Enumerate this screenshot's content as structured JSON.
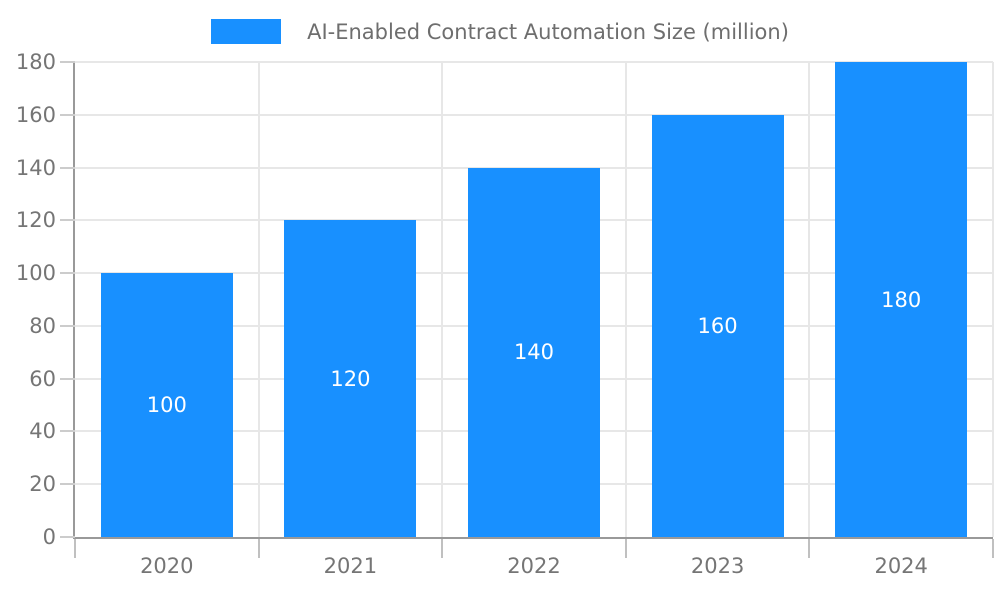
{
  "legend": {
    "label": "AI-Enabled Contract Automation Size (million)"
  },
  "chart_data": {
    "type": "bar",
    "title": "",
    "categories": [
      "2020",
      "2021",
      "2022",
      "2023",
      "2024"
    ],
    "values": [
      100,
      120,
      140,
      160,
      180
    ],
    "series_name": "AI-Enabled Contract Automation Size (million)",
    "xlabel": "",
    "ylabel": "",
    "ylim": [
      0,
      180
    ],
    "yticks": [
      0,
      20,
      40,
      60,
      80,
      100,
      120,
      140,
      160,
      180
    ],
    "grid": true,
    "legend_position": "top-center",
    "bar_color": "#1890ff",
    "bar_label_color": "#ffffff",
    "axis_color": "#999999",
    "grid_color": "#e7e7e7",
    "tick_label_color": "#757575"
  }
}
